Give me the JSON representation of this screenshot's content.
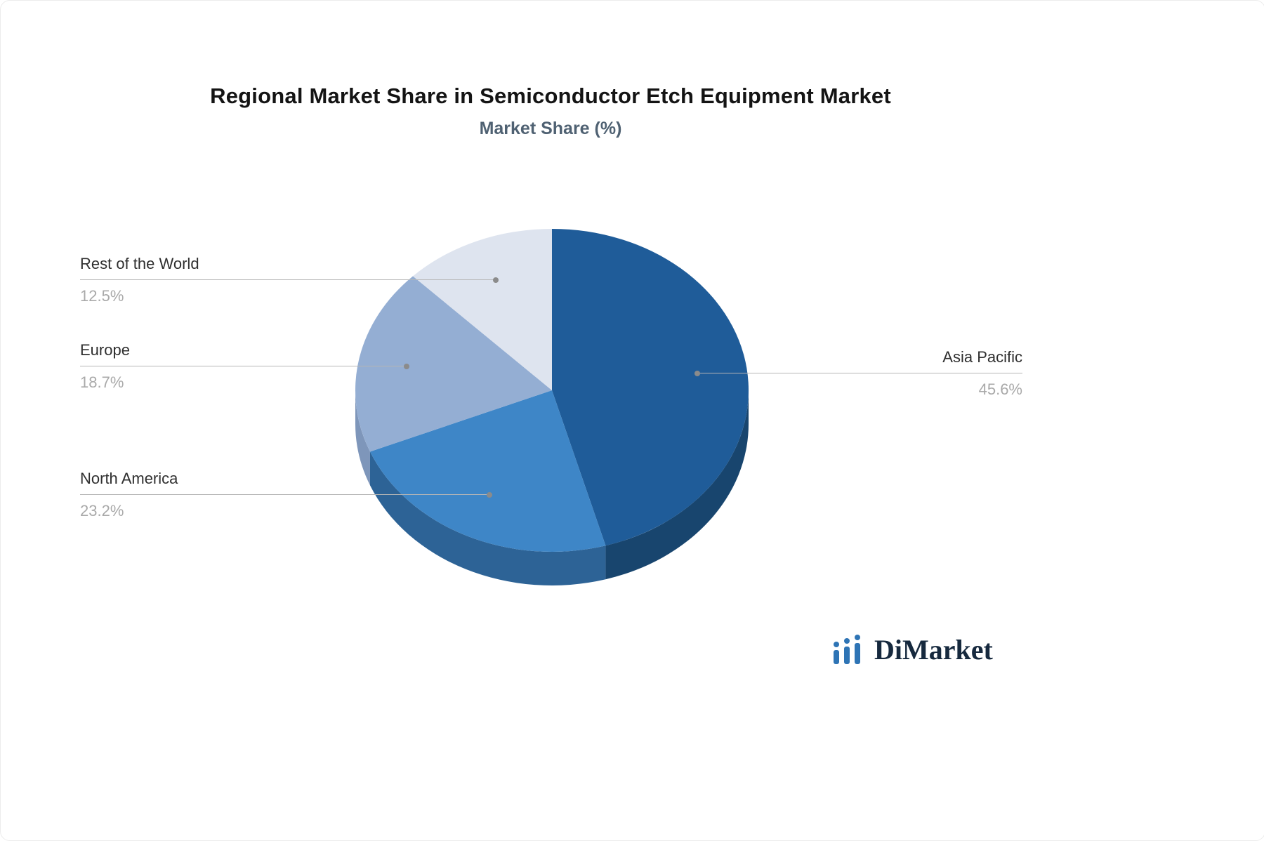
{
  "title": "Regional Market Share in Semiconductor Etch Equipment Market",
  "subtitle": "Market Share (%)",
  "brand": {
    "name": "DiMarket",
    "icon": "bar-chart-logo-icon",
    "icon_color": "#2e74b5",
    "text_color": "#16293e"
  },
  "chart_data": {
    "type": "pie",
    "title": "Regional Market Share in Semiconductor Etch Equipment Market",
    "subtitle": "Market Share (%)",
    "unit": "%",
    "style": "3d-pie",
    "start_angle_deg": -90,
    "direction": "clockwise",
    "legend": "none",
    "label_style": "leader-lines",
    "slices": [
      {
        "label": "Asia Pacific",
        "value": 45.6,
        "value_label": "45.6%",
        "color": "#1f5c99",
        "side_color": "#18456e"
      },
      {
        "label": "North America",
        "value": 23.2,
        "value_label": "23.2%",
        "color": "#3e86c7",
        "side_color": "#2d6396"
      },
      {
        "label": "Europe",
        "value": 18.7,
        "value_label": "18.7%",
        "color": "#94aed3",
        "side_color": "#7e96ba"
      },
      {
        "label": "Rest of the World",
        "value": 12.5,
        "value_label": "12.5%",
        "color": "#dee4ef",
        "side_color": "#bcc7d8"
      }
    ]
  }
}
